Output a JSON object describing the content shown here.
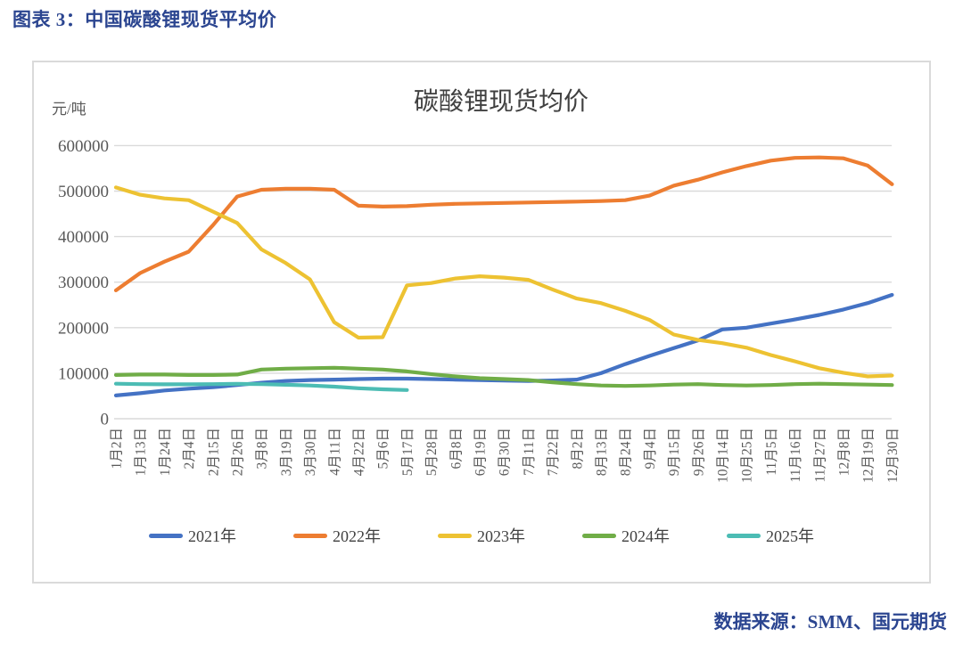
{
  "page": {
    "header": "图表 3：中国碳酸锂现货平均价",
    "footer": "数据来源：SMM、国元期货"
  },
  "chart_data": {
    "type": "line",
    "title": "碳酸锂现货均价",
    "unit_label": "元/吨",
    "ylabel": "元/吨",
    "xlabel": "",
    "ylim": [
      0,
      600000
    ],
    "y_ticks": [
      0,
      100000,
      200000,
      300000,
      400000,
      500000,
      600000
    ],
    "grid": true,
    "legend_position": "bottom",
    "gridline_color": "#DADADA",
    "categories": [
      "1月2日",
      "1月13日",
      "1月24日",
      "2月4日",
      "2月15日",
      "2月26日",
      "3月8日",
      "3月19日",
      "3月30日",
      "4月11日",
      "4月22日",
      "5月6日",
      "5月17日",
      "5月28日",
      "6月8日",
      "6月19日",
      "6月30日",
      "7月11日",
      "7月22日",
      "8月2日",
      "8月13日",
      "8月24日",
      "9月4日",
      "9月15日",
      "9月26日",
      "10月14日",
      "10月25日",
      "11月5日",
      "11月16日",
      "11月27日",
      "12月8日",
      "12月19日",
      "12月30日"
    ],
    "series": [
      {
        "name": "2021年",
        "color": "#4472C4",
        "values": [
          51000,
          56000,
          62000,
          66000,
          69000,
          74000,
          79000,
          83000,
          85000,
          86000,
          87000,
          88000,
          88000,
          87000,
          86000,
          85000,
          84000,
          83000,
          84000,
          86000,
          100000,
          120000,
          138000,
          155000,
          172000,
          196000,
          200000,
          209000,
          218000,
          228000,
          240000,
          254000,
          272000
        ]
      },
      {
        "name": "2022年",
        "color": "#ED7D31",
        "values": [
          282000,
          320000,
          345000,
          367000,
          425000,
          488000,
          503000,
          505000,
          505000,
          503000,
          468000,
          466000,
          467000,
          470000,
          472000,
          473000,
          474000,
          475000,
          476000,
          477000,
          478000,
          480000,
          490000,
          512000,
          525000,
          541000,
          555000,
          567000,
          573000,
          574000,
          572000,
          556000,
          515000
        ]
      },
      {
        "name": "2023年",
        "color": "#EDC232",
        "values": [
          508000,
          492000,
          484000,
          480000,
          455000,
          430000,
          372000,
          342000,
          306000,
          212000,
          178000,
          179000,
          293000,
          298000,
          308000,
          313000,
          310000,
          305000,
          284000,
          264000,
          254000,
          237000,
          217000,
          185000,
          173000,
          166000,
          156000,
          140000,
          126000,
          111000,
          101000,
          93000,
          95000
        ]
      },
      {
        "name": "2024年",
        "color": "#70AD47",
        "values": [
          96000,
          97000,
          97000,
          96000,
          96000,
          97000,
          108000,
          110000,
          111000,
          112000,
          110000,
          108000,
          104000,
          98000,
          93000,
          89000,
          87000,
          85000,
          80000,
          76000,
          73000,
          72000,
          73000,
          75000,
          76000,
          74000,
          73000,
          74000,
          76000,
          77000,
          76000,
          75000,
          74000
        ]
      },
      {
        "name": "2025年",
        "color": "#4CBCB4",
        "values": [
          77000,
          76000,
          75500,
          75500,
          76000,
          76500,
          76000,
          74500,
          73000,
          70500,
          67000,
          64500,
          63000,
          null,
          null,
          null,
          null,
          null,
          null,
          null,
          null,
          null,
          null,
          null,
          null,
          null,
          null,
          null,
          null,
          null,
          null,
          null,
          null
        ]
      }
    ]
  }
}
